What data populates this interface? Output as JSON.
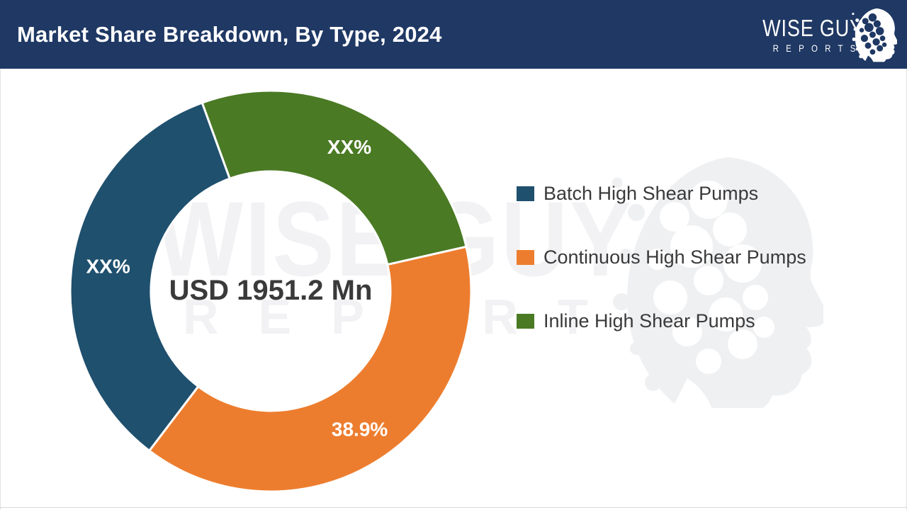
{
  "header": {
    "title": "Market Share Breakdown, By Type, 2024",
    "logo": {
      "brand": "WISE GUY",
      "sub": "REPORTS"
    }
  },
  "chart_data": {
    "type": "donut",
    "title": "Market Share Breakdown, By Type, 2024",
    "center_label": "USD 1951.2 Mn",
    "legend_position": "right",
    "start_angle_deg": -20,
    "geometry": {
      "outer_radius": 283,
      "inner_radius": 169,
      "label_radius": 232
    },
    "segments": [
      {
        "name": "Inline High Shear Pumps",
        "value_pct": 27.0,
        "display_label": "XX%",
        "color": "#4a7a24"
      },
      {
        "name": "Continuous High Shear Pumps",
        "value_pct": 38.9,
        "display_label": "38.9%",
        "color": "#ed7d2e"
      },
      {
        "name": "Batch High Shear Pumps",
        "value_pct": 34.1,
        "display_label": "XX%",
        "color": "#1f506e"
      }
    ]
  },
  "legend": {
    "items": [
      {
        "label": "Batch High Shear Pumps",
        "color": "#1f506e"
      },
      {
        "label": "Continuous High Shear Pumps",
        "color": "#ed7d2e"
      },
      {
        "label": "Inline High Shear Pumps",
        "color": "#4a7a24"
      }
    ]
  },
  "watermark": {
    "line1": "WISE GUY",
    "line2": "REPORTS"
  },
  "colors": {
    "header_bg": "#1f3864",
    "title_text": "#ffffff",
    "center_text": "#3a3a3a",
    "hairline": "#d8d8d8"
  }
}
